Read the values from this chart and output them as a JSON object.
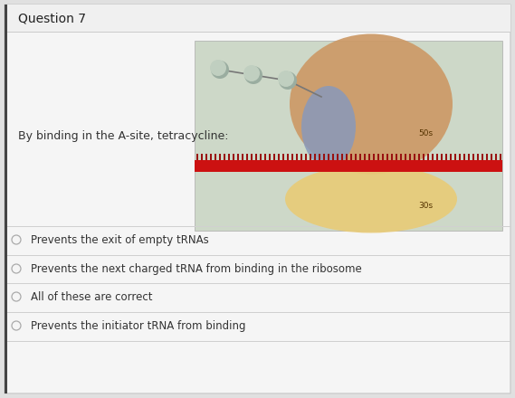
{
  "title": "Question 7",
  "question_text": "By binding in the A-site, tetracycline:",
  "options": [
    "Prevents the exit of empty tRNAs",
    "Prevents the next charged tRNA from binding in the ribosome",
    "All of these are correct",
    "Prevents the initiator tRNA from binding"
  ],
  "outer_bg": "#e0e0e0",
  "card_bg": "#f5f5f5",
  "title_bar_bg": "#f0f0f0",
  "diagram_bg": "#cdd8c8",
  "ribosome_50s_color": "#cc9966",
  "ribosome_30s_color": "#e8cb78",
  "asite_color": "#8899bb",
  "mrna_color": "#cc1111",
  "mrna_tick_color": "#991111",
  "sphere_color": "#c0cfc0",
  "sphere_edge": "#9aada0",
  "stem_color": "#777777",
  "label_50s": "50s",
  "label_30s": "30s",
  "title_fontsize": 10,
  "question_fontsize": 9,
  "option_fontsize": 8.5
}
